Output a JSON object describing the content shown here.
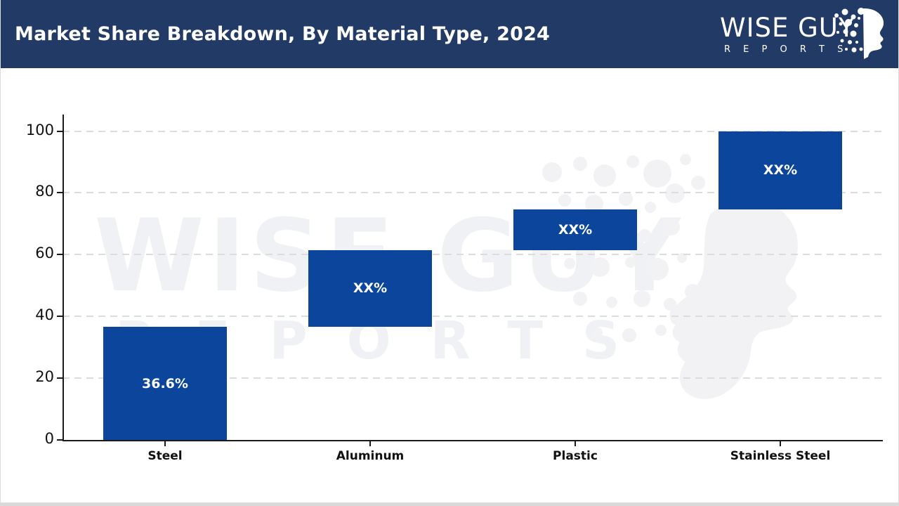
{
  "header": {
    "title": "Market Share Breakdown, By Material Type, 2024",
    "logo": {
      "line1": "WISE GUY",
      "line2": "R E P O R T S"
    }
  },
  "watermark": {
    "line1": "WISE GUY",
    "line2": "REPORTS"
  },
  "colors": {
    "header_bg": "#223a66",
    "bar": "#0b459c",
    "bar_label_text": "#ffffff",
    "grid": "#dcdcdc",
    "axis": "#1a1a1a",
    "watermark": "#f0f1f4",
    "footer_strip": "#d9d9d9"
  },
  "chart_data": {
    "type": "bar",
    "subtype": "waterfall",
    "title": "Market Share Breakdown, By Material Type, 2024",
    "categories": [
      "Steel",
      "Aluminum",
      "Plastic",
      "Stainless Steel"
    ],
    "segments": [
      {
        "category": "Steel",
        "start": 0,
        "end": 36.6,
        "label": "36.6%"
      },
      {
        "category": "Aluminum",
        "start": 36.6,
        "end": 61.5,
        "label": "XX%"
      },
      {
        "category": "Plastic",
        "start": 61.5,
        "end": 74.6,
        "label": "XX%"
      },
      {
        "category": "Stainless Steel",
        "start": 74.6,
        "end": 100,
        "label": "XX%"
      }
    ],
    "xlabel": "",
    "ylabel": "",
    "yticks": [
      0,
      20,
      40,
      60,
      80,
      100
    ],
    "ylim": [
      0,
      105
    ],
    "grid": "horizontal-dashed",
    "legend": "none",
    "bar_color": "#0b459c"
  }
}
